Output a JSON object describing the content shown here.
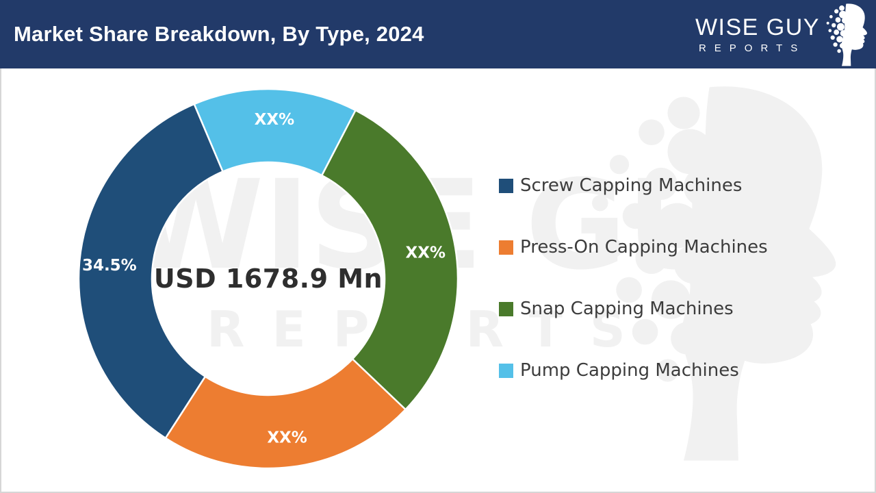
{
  "header": {
    "title": "Market Share Breakdown, By Type, 2024",
    "logo": {
      "name": "WISE GUY REPORTS",
      "line1": "WISE GUY",
      "line2": "REPORTS"
    }
  },
  "watermark": {
    "line1": "WISE GUY",
    "line2": "REPORTS"
  },
  "chart_data": {
    "type": "pie",
    "subtype": "donut",
    "title": "Market Share Breakdown, By Type, 2024",
    "center_label": "USD 1678.9 Mn",
    "unit": "USD Mn",
    "total_value_mn": 1678.9,
    "start_angle_deg": 113,
    "direction": "counterclockwise",
    "legend_position": "right",
    "segments": [
      {
        "label": "Screw Capping Machines",
        "display": "34.5%",
        "pct": 34.5,
        "pct_is_estimate": false,
        "color": "#1F4E79"
      },
      {
        "label": "Press-On Capping Machines",
        "display": "XX%",
        "pct": 22.0,
        "pct_is_estimate": true,
        "color": "#ED7D31"
      },
      {
        "label": "Snap Capping Machines",
        "display": "XX%",
        "pct": 29.5,
        "pct_is_estimate": true,
        "color": "#4A7A2B"
      },
      {
        "label": "Pump Capping Machines",
        "display": "XX%",
        "pct": 14.0,
        "pct_is_estimate": true,
        "color": "#54C0E8"
      }
    ]
  },
  "colors": {
    "header_bg": "#223A69",
    "header_text": "#FFFFFF",
    "wedge_label": "#FFFFFF",
    "center_text": "#2E2E2E",
    "legend_text": "#3C3C3C",
    "watermark": "#F1F1F1",
    "border": "#D6D6D6",
    "canvas": "#FFFFFF"
  }
}
